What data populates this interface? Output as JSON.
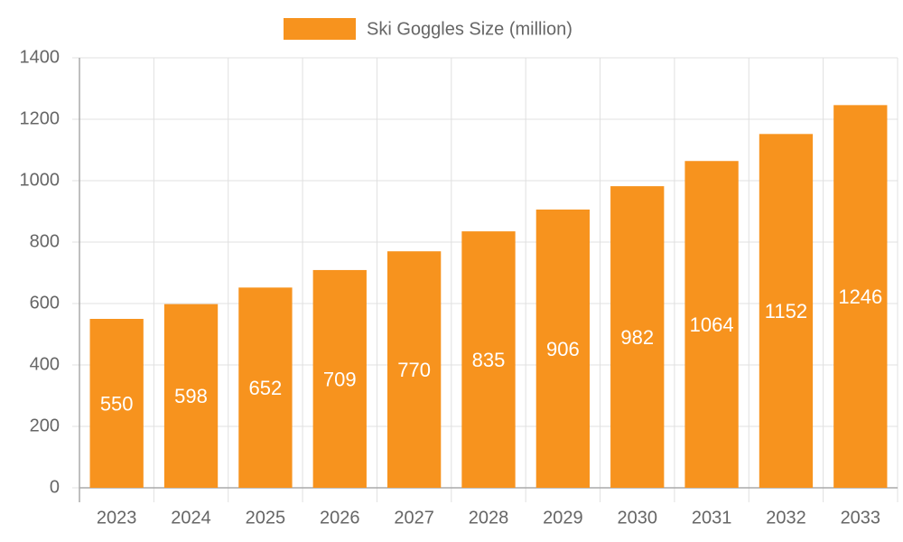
{
  "chart_data": {
    "type": "bar",
    "categories": [
      "2023",
      "2024",
      "2025",
      "2026",
      "2027",
      "2028",
      "2029",
      "2030",
      "2031",
      "2032",
      "2033"
    ],
    "series": [
      {
        "name": "Ski Goggles Size (million)",
        "color": "#f7931e",
        "values": [
          550,
          598,
          652,
          709,
          770,
          835,
          906,
          982,
          1064,
          1152,
          1246
        ]
      }
    ],
    "ylim": [
      0,
      1400
    ],
    "yticks": [
      0,
      200,
      400,
      600,
      800,
      1000,
      1200,
      1400
    ],
    "grid": true,
    "legend": "top",
    "data_labels": true
  }
}
